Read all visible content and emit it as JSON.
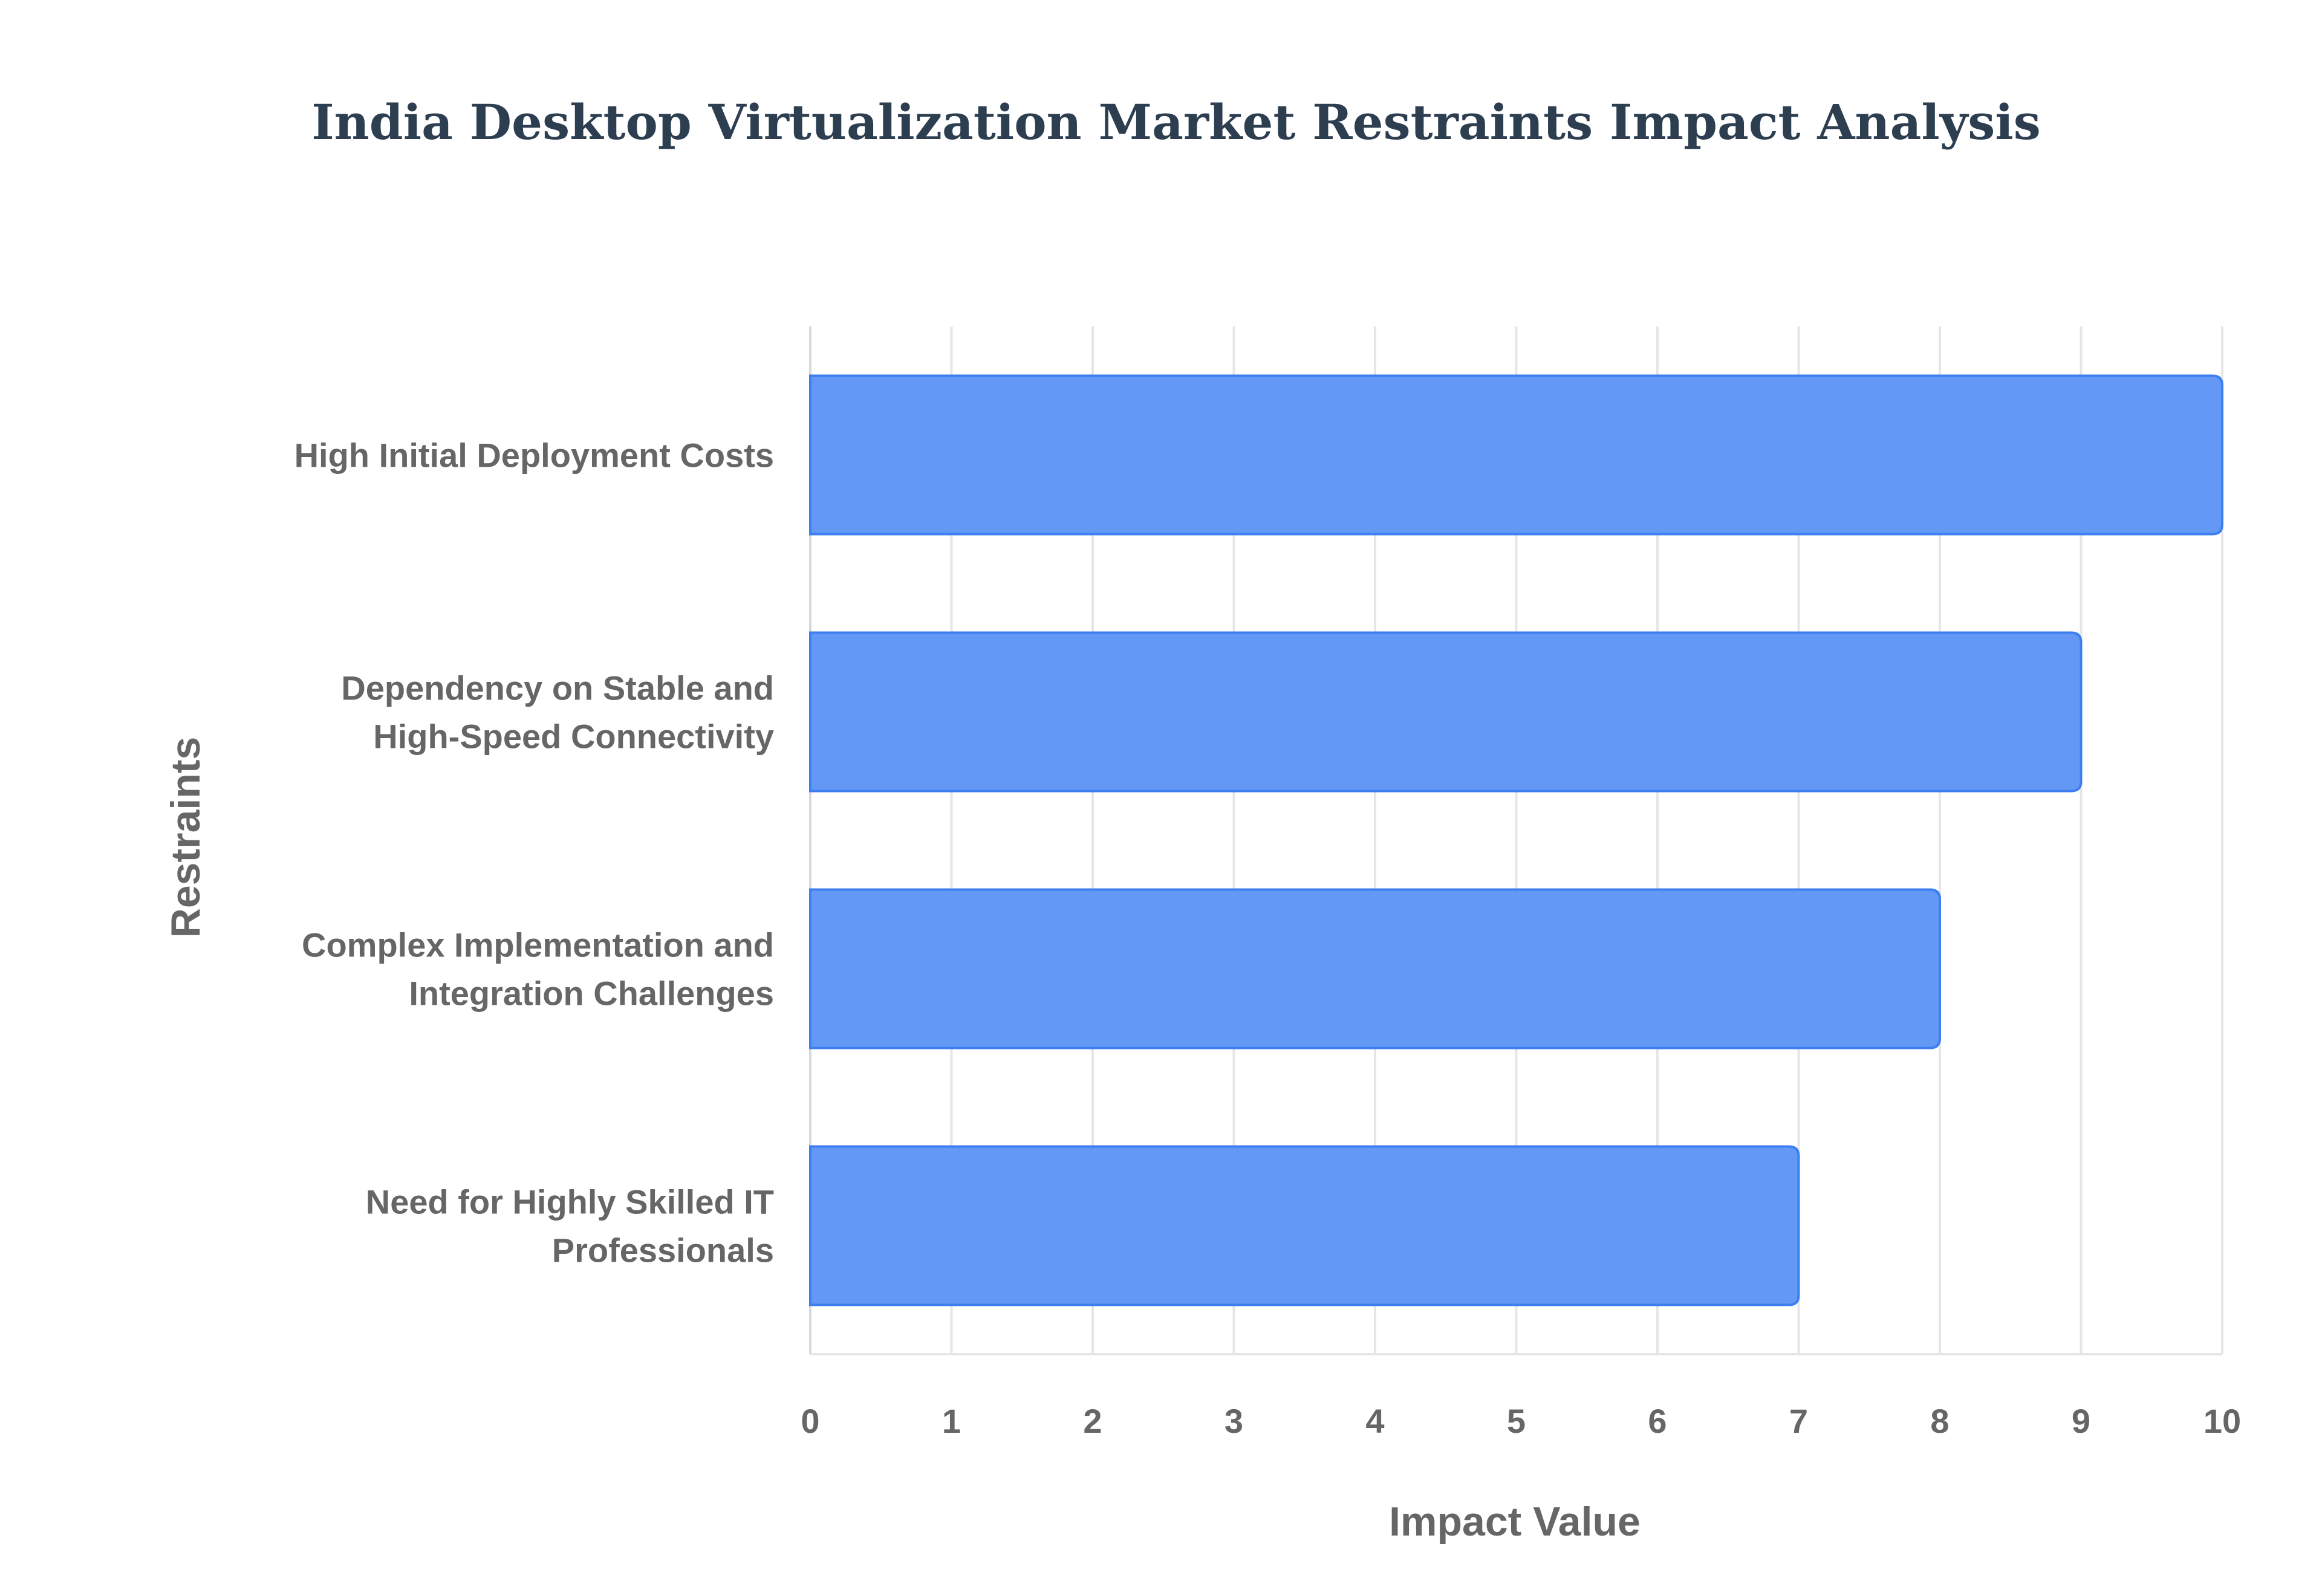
{
  "colors": {
    "bar_fill": "#6399f5",
    "bar_stroke": "#3d7ef0",
    "grid": "#e6e6e6",
    "axis": "#d9d9d9",
    "title": "#2c3e50",
    "label": "#666666"
  },
  "chart_data": {
    "type": "bar",
    "orientation": "horizontal",
    "title": "India Desktop Virtualization Market Restraints Impact Analysis",
    "xlabel": "Impact Value",
    "ylabel": "Restraints",
    "categories": [
      [
        "High Initial Deployment Costs"
      ],
      [
        "Dependency on Stable and",
        "High-Speed Connectivity"
      ],
      [
        "Complex Implementation and",
        "Integration Challenges"
      ],
      [
        "Need for Highly Skilled IT",
        "Professionals"
      ]
    ],
    "values": [
      10,
      9,
      8,
      7
    ],
    "xlim": [
      0,
      10
    ],
    "xticks": [
      "0",
      "1",
      "2",
      "3",
      "4",
      "5",
      "6",
      "7",
      "8",
      "9",
      "10"
    ],
    "grid": true,
    "legend": "none"
  }
}
